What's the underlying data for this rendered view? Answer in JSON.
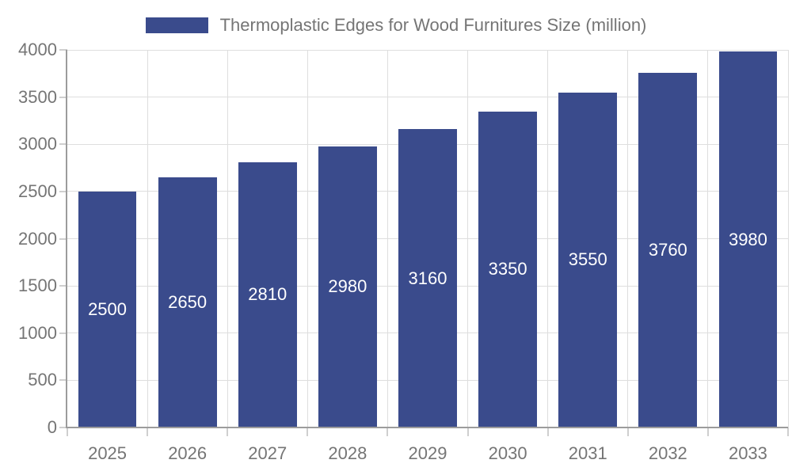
{
  "chart_data": {
    "type": "bar",
    "title": "",
    "series_name": "Thermoplastic Edges for Wood Furnitures Size (million)",
    "legend": [
      "Thermoplastic Edges for Wood Furnitures Size (million)"
    ],
    "legend_position": "top",
    "categories": [
      "2025",
      "2026",
      "2027",
      "2028",
      "2029",
      "2030",
      "2031",
      "2032",
      "2033"
    ],
    "values": [
      2500,
      2650,
      2810,
      2980,
      3160,
      3350,
      3550,
      3760,
      3980
    ],
    "bar_value_labels": [
      "2500",
      "2650",
      "2810",
      "2980",
      "3160",
      "3350",
      "3550",
      "3760",
      "3980"
    ],
    "xlabel": "",
    "ylabel": "",
    "ylim": [
      0,
      4000
    ],
    "ytick_step": 500,
    "yticks": [
      0,
      500,
      1000,
      1500,
      2000,
      2500,
      3000,
      3500,
      4000
    ],
    "grid": true,
    "colors": {
      "bar": "#3A4B8C",
      "bar_value_label": "#ffffff",
      "axis_text": "#757575",
      "grid_line": "#dedede",
      "axis_line": "#9c9c9c",
      "tick_mark": "#cfcfcf",
      "background": "#ffffff"
    }
  }
}
